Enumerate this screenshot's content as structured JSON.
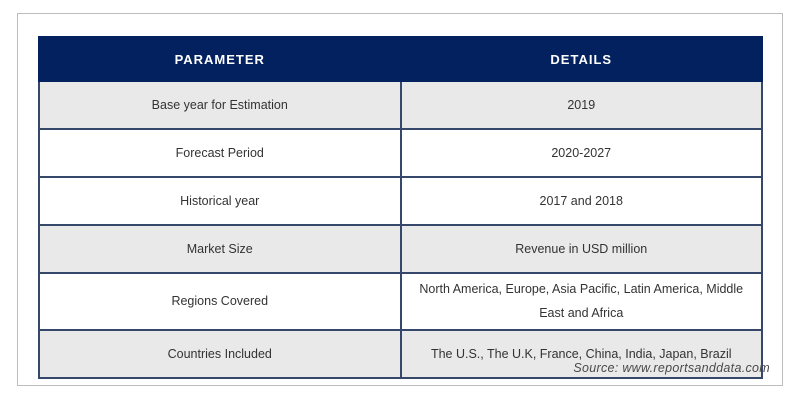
{
  "colors": {
    "header_bg": "#04215f",
    "shaded_row_bg": "#e9e9e9",
    "border": "#35476b"
  },
  "chart_data": {
    "type": "table",
    "columns": [
      "PARAMETER",
      "DETAILS"
    ],
    "rows": [
      {
        "parameter": "Base year for Estimation",
        "details": "2019",
        "shaded": true
      },
      {
        "parameter": "Forecast Period",
        "details": "2020-2027",
        "shaded": false
      },
      {
        "parameter": "Historical year",
        "details": "2017 and 2018",
        "shaded": false
      },
      {
        "parameter": "Market Size",
        "details": "Revenue in USD million",
        "shaded": true
      },
      {
        "parameter": "Regions Covered",
        "details": "North America, Europe, Asia Pacific, Latin America, Middle East and Africa",
        "shaded": false
      },
      {
        "parameter": "Countries Included",
        "details": "The U.S., The  U.K, France, China, India, Japan, Brazil",
        "shaded": true
      }
    ]
  },
  "source": "Source: www.reportsanddata.com"
}
